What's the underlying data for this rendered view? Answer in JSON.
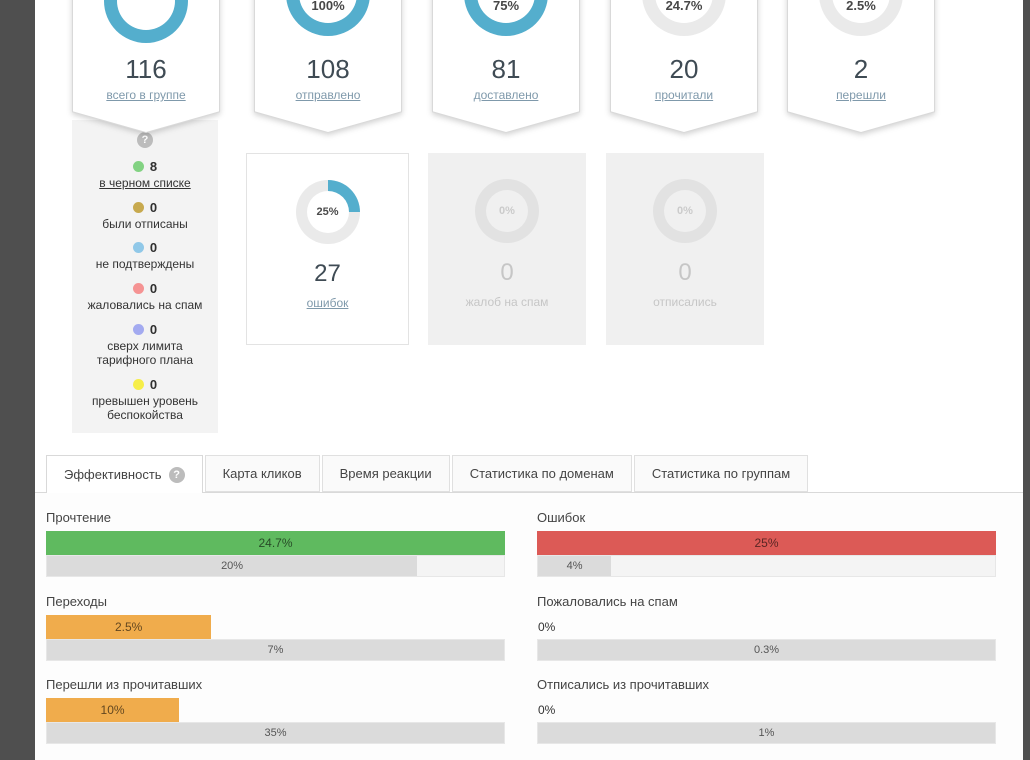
{
  "colors": {
    "donut_blue": "#54aecd",
    "donut_track": "#eaeaea",
    "green": "#5fba5f",
    "red": "#dc5a56",
    "orange": "#f0ac4c"
  },
  "stat_cards": [
    {
      "percent": "",
      "value": "116",
      "label": "всего в группе",
      "donut_percent": 100
    },
    {
      "percent": "100%",
      "value": "108",
      "label": "отправлено",
      "donut_percent": 100
    },
    {
      "percent": "75%",
      "value": "81",
      "label": "доставлено",
      "donut_percent": 75
    },
    {
      "percent": "24.7%",
      "value": "20",
      "label": "прочитали",
      "donut_percent": 24.7
    },
    {
      "percent": "2.5%",
      "value": "2",
      "label": "перешли",
      "donut_percent": 2.5
    }
  ],
  "legend": {
    "help": "?",
    "items": [
      {
        "value": "8",
        "label": "в черном списке",
        "color": "#82d282"
      },
      {
        "value": "0",
        "label": "были отписаны",
        "color": "#c7a94e"
      },
      {
        "value": "0",
        "label": "не подтверждены",
        "color": "#90c8e8"
      },
      {
        "value": "0",
        "label": "жаловались на спам",
        "color": "#f59393"
      },
      {
        "value": "0",
        "label": "сверх лимита тарифного плана",
        "color": "#a3aaf0"
      },
      {
        "value": "0",
        "label": "превышен уровень беспокойства",
        "color": "#f6ee48"
      }
    ]
  },
  "secondary_cards": [
    {
      "percent": "25%",
      "value": "27",
      "label": "ошибок",
      "donut_percent": 25
    },
    {
      "percent": "0%",
      "value": "0",
      "label": "жалоб на спам",
      "donut_percent": 0
    },
    {
      "percent": "0%",
      "value": "0",
      "label": "отписались",
      "donut_percent": 0
    }
  ],
  "tabs": [
    {
      "label": "Эффективность",
      "help": "?"
    },
    {
      "label": "Карта кликов"
    },
    {
      "label": "Время реакции"
    },
    {
      "label": "Статистика по доменам"
    },
    {
      "label": "Статистика по группам"
    }
  ],
  "efficiency_bars": [
    {
      "title": "Прочтение",
      "value_label": "24.7%",
      "value_width": 100,
      "color": "#5fba5f",
      "avg_label": "20%",
      "avg_width": 81,
      "variant": "fill"
    },
    {
      "title": "Ошибок",
      "value_label": "25%",
      "value_width": 100,
      "color": "#dc5a56",
      "avg_label": "4%",
      "avg_width": 16,
      "variant": "fill"
    },
    {
      "title": "Переходы",
      "value_label": "2.5%",
      "value_width": 36,
      "color": "#f0ac4c",
      "avg_label": "7%",
      "avg_width": 100,
      "variant": "fill"
    },
    {
      "title": "Пожаловались на спам",
      "value_label": "0%",
      "value_width": 0,
      "color": "transparent",
      "avg_label": "0.3%",
      "avg_width": 100,
      "variant": "zero"
    },
    {
      "title": "Перешли из прочитавших",
      "value_label": "10%",
      "value_width": 29,
      "color": "#f0ac4c",
      "avg_label": "35%",
      "avg_width": 100,
      "variant": "fill"
    },
    {
      "title": "Отписались из прочитавших",
      "value_label": "0%",
      "value_width": 0,
      "color": "transparent",
      "avg_label": "1%",
      "avg_width": 100,
      "variant": "zero"
    }
  ]
}
